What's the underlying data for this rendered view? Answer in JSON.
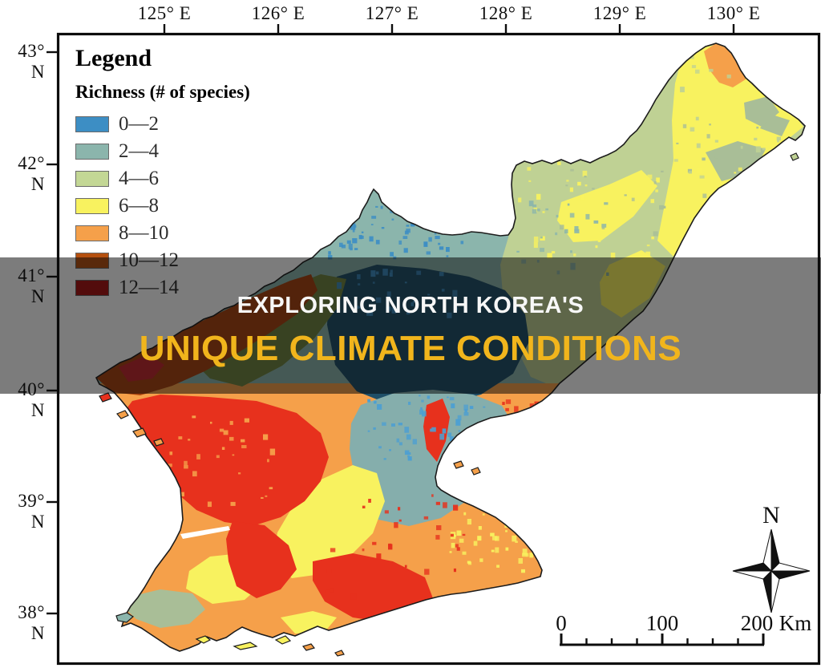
{
  "axes": {
    "top_ticks": [
      "125° E",
      "126° E",
      "127° E",
      "128° E",
      "129° E",
      "130° E"
    ],
    "left_ticks": [
      "43° N",
      "42° N",
      "41° N",
      "40° N",
      "39° N",
      "38° N"
    ]
  },
  "legend": {
    "title": "Legend",
    "subtitle": "Richness (# of species)",
    "items": [
      {
        "label": "0—2",
        "color": "#3D8EC4"
      },
      {
        "label": "2—4",
        "color": "#8BB5AC"
      },
      {
        "label": "4—6",
        "color": "#C3D795"
      },
      {
        "label": "6—8",
        "color": "#F8F25F"
      },
      {
        "label": "8—10",
        "color": "#F5A04A"
      },
      {
        "label": "10—12",
        "color": "#B5500F"
      },
      {
        "label": "12—14",
        "color": "#A81212"
      }
    ]
  },
  "banner": {
    "line1": "EXPLORING NORTH KOREA'S",
    "line2": "UNIQUE CLIMATE CONDITIONS",
    "line1_color": "#f7f7f7",
    "line2_color": "#f1b51c"
  },
  "compass": {
    "label": "N"
  },
  "scale_bar": {
    "labels": [
      "0",
      "100",
      "200"
    ],
    "unit": "Km"
  },
  "map_palette": {
    "sea": "#ffffff",
    "blue": "#3D8EC4",
    "blue_light": "#4D9FD2",
    "teal": "#8BB5AC",
    "teal_south": "#85AEAC",
    "green": "#BFD194",
    "sage": "#A9BE97",
    "yellow": "#F8F25F",
    "orange": "#F5A04A",
    "red": "#E7311D",
    "red_dark": "#C1272D",
    "rust": "#A8430F",
    "navy": "#1F4F68",
    "olive": "#6F8440",
    "outline": "#1c1c1c"
  }
}
